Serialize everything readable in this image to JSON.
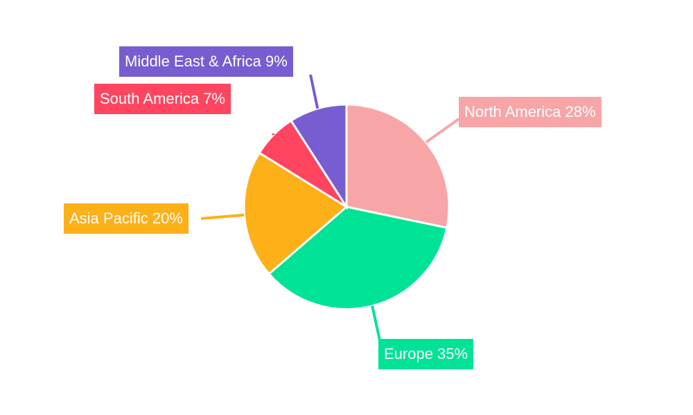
{
  "chart_data": {
    "type": "pie",
    "title": "",
    "categories": [
      "North America",
      "Europe",
      "Asia Pacific",
      "South America",
      "Middle East & Africa"
    ],
    "values": [
      28,
      35,
      20,
      7,
      9
    ],
    "colors": [
      "#f8a5a8",
      "#00e396",
      "#feb019",
      "#ff4560",
      "#775dd0"
    ],
    "labels": [
      "North America 28%",
      "Europe 35%",
      "Asia Pacific 20%",
      "South America 7%",
      "Middle East & Africa 9%"
    ],
    "start_angle_deg": 0,
    "direction": "clockwise",
    "legend": "none",
    "label_style": "outside boxed with leader lines"
  }
}
